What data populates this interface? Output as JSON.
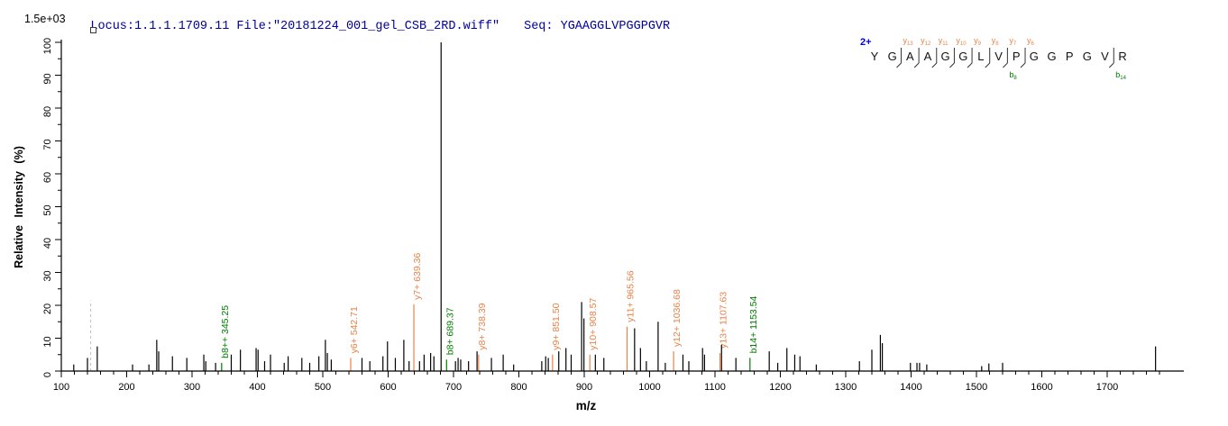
{
  "header": {
    "locus_file": "Locus:1.1.1.1709.11 File:\"20181224_001_gel_CSB_2RD.wiff\"",
    "seq": "Seq: YGAAGGLVPGGPGVR",
    "text_color": "#00009c"
  },
  "intensity_scale_label": "1.5e+03",
  "peptide_map": {
    "charge_label": "2+",
    "charge_color": "#0000dd",
    "residues": [
      "Y",
      "G",
      "A",
      "A",
      "G",
      "G",
      "L",
      "V",
      "P",
      "G",
      "G",
      "P",
      "G",
      "V",
      "R"
    ],
    "y_ion_color": "#e8824a",
    "b_ion_color": "#007d00",
    "fragments": [
      {
        "after": 2,
        "y": "y13"
      },
      {
        "after": 3,
        "y": "y12"
      },
      {
        "after": 4,
        "y": "y11"
      },
      {
        "after": 5,
        "y": "y10"
      },
      {
        "after": 6,
        "y": "y9"
      },
      {
        "after": 7,
        "y": "y8"
      },
      {
        "after": 8,
        "y": "y7",
        "b": "b8"
      },
      {
        "after": 9,
        "y": "y6"
      },
      {
        "after": 14,
        "b": "b14"
      }
    ]
  },
  "chart_data": {
    "type": "bar",
    "title": "",
    "xlabel": "m/z",
    "ylabel": "Relative Intensity (%)",
    "xlim": [
      100,
      1810
    ],
    "ylim": [
      0,
      100
    ],
    "x_major_tick_step": 100,
    "x_minor_tick_step": 20,
    "x_last_major_tick": 1700,
    "x_last_minor_tick": 1780,
    "y_major_tick_step": 10,
    "y_minor_tick_step": 5,
    "grid": "off",
    "max_intensity_counts": "1.5e+03",
    "series_colors": {
      "unassigned": "#000000",
      "y": "#e8824a",
      "b": "#007d00",
      "reference": "#bdbdbd"
    },
    "peaks": [
      [
        119,
        2,
        "u"
      ],
      [
        140,
        4,
        "u"
      ],
      [
        145,
        21.5,
        "ref"
      ],
      [
        155,
        7.5,
        "u"
      ],
      [
        209,
        2,
        "u"
      ],
      [
        234,
        2,
        "u"
      ],
      [
        246,
        9.5,
        "u"
      ],
      [
        249,
        6,
        "u"
      ],
      [
        270,
        4.5,
        "u"
      ],
      [
        292,
        4,
        "u"
      ],
      [
        318,
        5,
        "u"
      ],
      [
        321,
        3,
        "u"
      ],
      [
        336,
        2.5,
        "u"
      ],
      [
        345.25,
        2.5,
        "b",
        "b8++ 345.25"
      ],
      [
        360,
        5,
        "u"
      ],
      [
        374,
        6.5,
        "u"
      ],
      [
        398,
        7,
        "u"
      ],
      [
        401,
        6.5,
        "u"
      ],
      [
        411,
        3,
        "u"
      ],
      [
        420,
        5,
        "u"
      ],
      [
        441,
        2.5,
        "u"
      ],
      [
        447,
        4.5,
        "u"
      ],
      [
        468,
        4,
        "u"
      ],
      [
        480,
        2.5,
        "u"
      ],
      [
        494,
        4.5,
        "u"
      ],
      [
        504,
        9.5,
        "u"
      ],
      [
        507,
        5.5,
        "u"
      ],
      [
        513,
        3.5,
        "u"
      ],
      [
        542.71,
        4,
        "y",
        "y6+ 542.71"
      ],
      [
        560,
        4,
        "u"
      ],
      [
        572,
        3,
        "u"
      ],
      [
        592,
        4.5,
        "u"
      ],
      [
        599,
        9,
        "u"
      ],
      [
        611,
        4,
        "u"
      ],
      [
        624,
        9.5,
        "u"
      ],
      [
        632,
        3,
        "u"
      ],
      [
        639.36,
        20.3,
        "y",
        "y7+ 639.36"
      ],
      [
        648,
        3,
        "u"
      ],
      [
        655,
        5,
        "u"
      ],
      [
        665,
        5.5,
        "u"
      ],
      [
        670,
        4.5,
        "u"
      ],
      [
        681,
        100,
        "u"
      ],
      [
        689.37,
        3.5,
        "b",
        "b8+ 689.37"
      ],
      [
        703,
        3,
        "u"
      ],
      [
        707,
        4,
        "u"
      ],
      [
        711,
        3.5,
        "u"
      ],
      [
        723,
        3,
        "u"
      ],
      [
        736,
        6,
        "u"
      ],
      [
        738.39,
        5,
        "y",
        "y8+ 738.39"
      ],
      [
        758,
        4,
        "u"
      ],
      [
        776,
        5,
        "u"
      ],
      [
        792,
        2,
        "u"
      ],
      [
        835,
        3,
        "u"
      ],
      [
        841,
        4.5,
        "u"
      ],
      [
        845,
        4,
        "u"
      ],
      [
        851.5,
        5,
        "y",
        "y9+ 851.50"
      ],
      [
        861,
        6,
        "u"
      ],
      [
        872,
        7,
        "u"
      ],
      [
        880,
        5,
        "u"
      ],
      [
        896,
        21,
        "u"
      ],
      [
        899.5,
        16,
        "u"
      ],
      [
        908.57,
        5,
        "y",
        "y10+ 908.57"
      ],
      [
        917,
        5,
        "u"
      ],
      [
        930,
        4,
        "u"
      ],
      [
        965.56,
        13.5,
        "y",
        "y11+ 965.56"
      ],
      [
        977,
        13,
        "u"
      ],
      [
        986,
        7,
        "u"
      ],
      [
        995,
        3,
        "u"
      ],
      [
        1013,
        15,
        "u"
      ],
      [
        1024,
        2.5,
        "u"
      ],
      [
        1036.68,
        6,
        "y",
        "y12+ 1036.68"
      ],
      [
        1051,
        5,
        "u"
      ],
      [
        1060,
        3,
        "u"
      ],
      [
        1081,
        7,
        "u"
      ],
      [
        1084,
        5,
        "u"
      ],
      [
        1107.63,
        5.5,
        "y",
        "y13+ 1107.63"
      ],
      [
        1110,
        8,
        "u"
      ],
      [
        1132,
        4,
        "u"
      ],
      [
        1153.54,
        4,
        "b",
        "b14+ 1153.54"
      ],
      [
        1183,
        6,
        "u"
      ],
      [
        1196,
        2.5,
        "u"
      ],
      [
        1210,
        7,
        "u"
      ],
      [
        1222,
        5,
        "u"
      ],
      [
        1230,
        4.5,
        "u"
      ],
      [
        1255,
        2,
        "u"
      ],
      [
        1321,
        3,
        "u"
      ],
      [
        1340,
        6.5,
        "u"
      ],
      [
        1353,
        11,
        "u"
      ],
      [
        1356,
        8.5,
        "u"
      ],
      [
        1399,
        2.5,
        "u"
      ],
      [
        1409,
        2.5,
        "u"
      ],
      [
        1413,
        2.5,
        "u"
      ],
      [
        1424,
        2,
        "u"
      ],
      [
        1508,
        1.5,
        "u"
      ],
      [
        1519,
        2.3,
        "u"
      ],
      [
        1540,
        2.5,
        "u"
      ],
      [
        1774,
        7.5,
        "u"
      ]
    ]
  }
}
